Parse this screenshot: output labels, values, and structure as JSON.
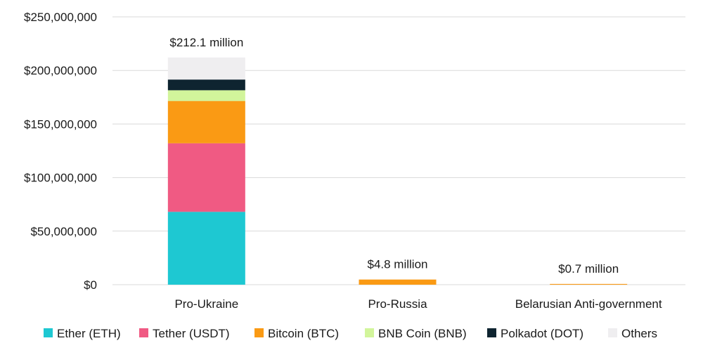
{
  "chart_data": {
    "type": "bar",
    "stacked": true,
    "categories": [
      "Pro-Ukraine",
      "Pro-Russia",
      "Belarusian Anti-government"
    ],
    "series": [
      {
        "name": "Ether (ETH)",
        "color": "#1ec8d2",
        "values": [
          68000000,
          0,
          0
        ]
      },
      {
        "name": "Tether (USDT)",
        "color": "#f05a83",
        "values": [
          64000000,
          0,
          0
        ]
      },
      {
        "name": "Bitcoin (BTC)",
        "color": "#fa9a14",
        "values": [
          39500000,
          4800000,
          700000
        ]
      },
      {
        "name": "BNB Coin (BNB)",
        "color": "#d2f59b",
        "values": [
          10000000,
          0,
          0
        ]
      },
      {
        "name": "Polkadot (DOT)",
        "color": "#0e2430",
        "values": [
          10000000,
          0,
          0
        ]
      },
      {
        "name": "Others",
        "color": "#efeef0",
        "values": [
          20600000,
          0,
          0
        ]
      }
    ],
    "totals_labels": [
      "$212.1 million",
      "$4.8 million",
      "$0.7 million"
    ],
    "totals": [
      212100000,
      4800000,
      700000
    ],
    "y_ticks": [
      0,
      50000000,
      100000000,
      150000000,
      200000000,
      250000000
    ],
    "y_tick_labels": [
      "$0",
      "$50,000,000",
      "$100,000,000",
      "$150,000,000",
      "$200,000,000",
      "$250,000,000"
    ],
    "ylim": [
      0,
      250000000
    ],
    "grid": true,
    "legend_position": "bottom",
    "title": "",
    "xlabel": "",
    "ylabel": ""
  }
}
